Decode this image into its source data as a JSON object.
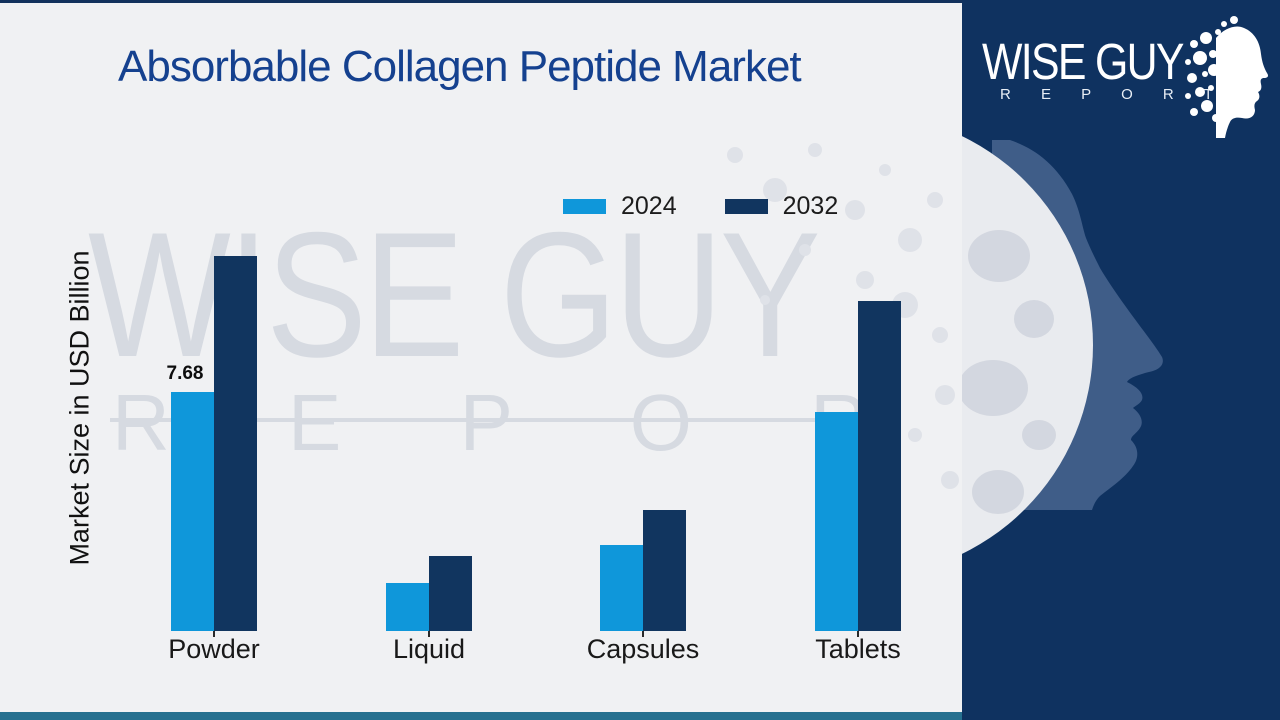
{
  "page": {
    "title": "Absorbable Collagen Peptide Market"
  },
  "watermark": {
    "line1": "WISE GUY",
    "line2": "R E P O R T S"
  },
  "logo": {
    "line1": "WISE GUY",
    "line2": "R E P O R T S"
  },
  "chart_data": {
    "type": "bar",
    "title": "Absorbable Collagen Peptide Market",
    "xlabel": "",
    "ylabel": "Market Size in USD Billion",
    "categories": [
      "Powder",
      "Liquid",
      "Capsules",
      "Tablets"
    ],
    "series": [
      {
        "name": "2024",
        "color": "#0f97da",
        "values": [
          7.68,
          1.55,
          2.75,
          7.05
        ]
      },
      {
        "name": "2032",
        "color": "#11355f",
        "values": [
          12.05,
          2.4,
          3.9,
          10.6
        ]
      }
    ],
    "ylim": [
      0,
      13
    ],
    "grid": false,
    "legend_position": "top-right",
    "data_labels": [
      {
        "series": "2024",
        "category": "Powder",
        "text": "7.68"
      }
    ]
  },
  "colors": {
    "background": "#f0f1f3",
    "title_blue": "#15418f",
    "bar_2024": "#0f97da",
    "bar_2032": "#11355f",
    "panel_navy": "#0f3260",
    "teal_strip": "#26708f",
    "watermark_gray": "#d6dae1"
  }
}
